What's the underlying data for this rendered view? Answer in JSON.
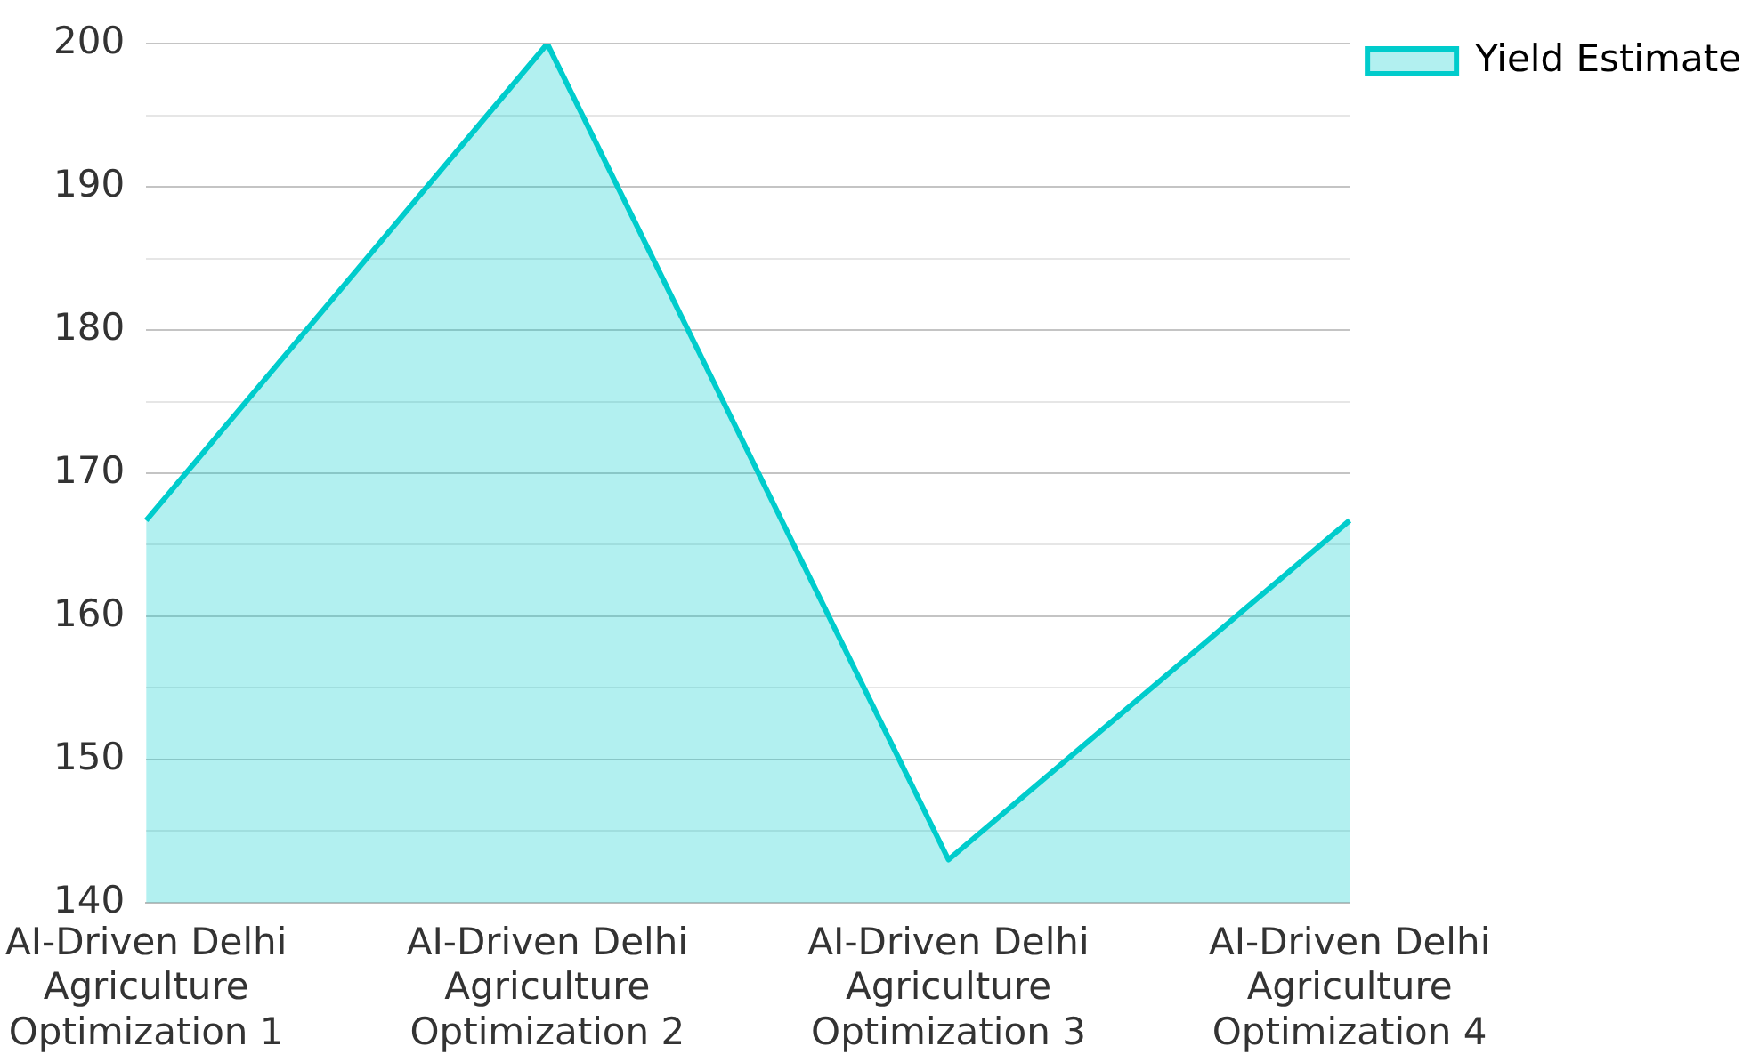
{
  "chart_data": {
    "type": "area",
    "categories": [
      "AI-Driven Delhi Agriculture Optimization 1",
      "AI-Driven Delhi Agriculture Optimization 2",
      "AI-Driven Delhi Agriculture Optimization 3",
      "AI-Driven Delhi Agriculture Optimization 4"
    ],
    "series": [
      {
        "name": "Yield Estimate",
        "color": "#00cccc",
        "values": [
          166.7,
          200,
          143,
          166.7
        ]
      }
    ],
    "ylim": [
      140,
      200
    ],
    "yticks": [
      140,
      {
        "value": 145,
        "label": null
      },
      150,
      {
        "value": 155,
        "label": null
      },
      160,
      {
        "value": 165,
        "label": null
      },
      170,
      {
        "value": 175,
        "label": null
      },
      180,
      {
        "value": 185,
        "label": null
      },
      190,
      {
        "value": 195,
        "label": null
      },
      200
    ],
    "grid": "y",
    "legend": "top right",
    "marker": "none",
    "line_style": "solid"
  }
}
